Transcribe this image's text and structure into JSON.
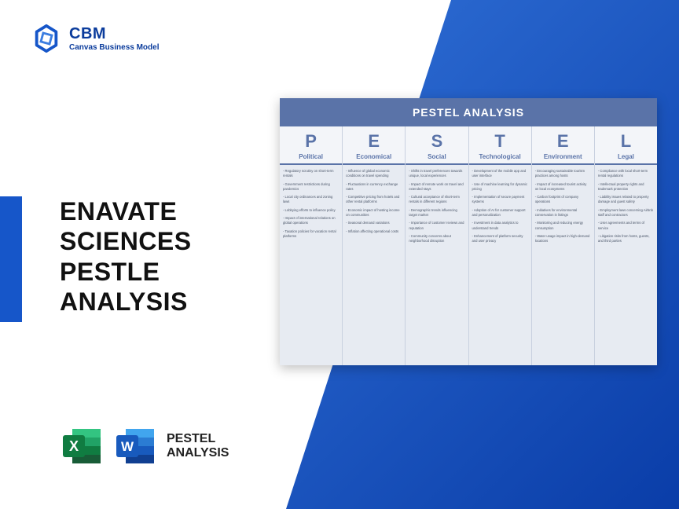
{
  "brand": {
    "name": "CBM",
    "tagline": "Canvas Business Model"
  },
  "accent_color": "#1656c9",
  "gradient": {
    "from": "#2f6fd6",
    "to": "#0a3da8"
  },
  "main_title": "ENAVATE SCIENCES PESTLE ANALYSIS",
  "format_label": "PESTEL ANALYSIS",
  "icons": {
    "excel": {
      "bg": "#1f7244",
      "accent": "#21a366",
      "dark": "#107c41",
      "letter": "X"
    },
    "word": {
      "bg": "#2b579a",
      "accent": "#41a5ee",
      "dark": "#185abd",
      "letter": "W"
    }
  },
  "pestel": {
    "title": "PESTEL ANALYSIS",
    "header_bg": "#5a73a8",
    "card_bg": "#e7ebf2",
    "label_color": "#5a73a8",
    "columns": [
      {
        "letter": "P",
        "name": "Political",
        "items": [
          "Regulatory scrutiny on short-term rentals",
          "Government restrictions during pandemics",
          "Local city ordinances and zoning laws",
          "Lobbying efforts to influence policy",
          "Impact of international relations on global operations",
          "Taxation policies for vacation rental platforms"
        ]
      },
      {
        "letter": "E",
        "name": "Economical",
        "items": [
          "Influence of global economic conditions on travel spending",
          "Fluctuations in currency exchange rates",
          "Competitive pricing from hotels and other rental platforms",
          "Economic impact of hosting income on communities",
          "Seasonal demand variations",
          "Inflation affecting operational costs"
        ]
      },
      {
        "letter": "S",
        "name": "Social",
        "items": [
          "Shifts in travel preferences towards unique, local experiences",
          "Impact of remote work on travel and extended stays",
          "Cultural acceptance of short-term rentals in different regions",
          "Demographic trends influencing target market",
          "Importance of customer reviews and reputation",
          "Community concerns about neighborhood disruption"
        ]
      },
      {
        "letter": "T",
        "name": "Technological",
        "items": [
          "Development of the mobile app and user interface",
          "Use of machine learning for dynamic pricing",
          "Implementation of secure payment systems",
          "Adoption of AI for customer support and personalization",
          "Investment in data analytics to understand trends",
          "Enhancement of platform security and user privacy"
        ]
      },
      {
        "letter": "E",
        "name": "Environment",
        "items": [
          "Encouraging sustainable tourism practices among hosts",
          "Impact of increased tourist activity on local ecosystems",
          "Carbon footprint of company operations",
          "Initiatives for environmental conservation in listings",
          "Monitoring and reducing energy consumption",
          "Water usage impact in high-demand locations"
        ]
      },
      {
        "letter": "L",
        "name": "Legal",
        "items": [
          "Compliance with local short-term rental regulations",
          "Intellectual property rights and trademark protection",
          "Liability issues related to property damage and guest safety",
          "Employment laws concerning Airbnb staff and contractors",
          "User agreements and terms of service",
          "Litigation risks from hosts, guests, and third parties"
        ]
      }
    ]
  }
}
